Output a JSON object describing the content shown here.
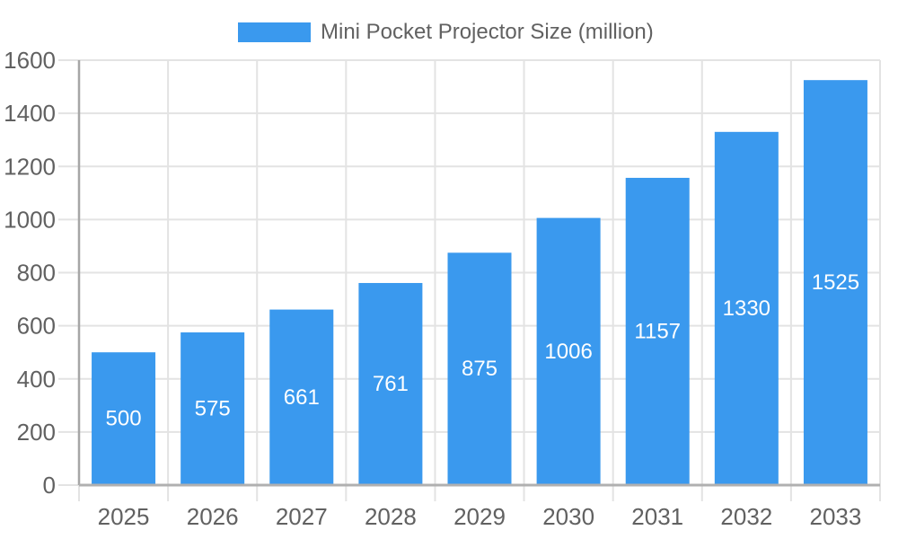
{
  "legend": {
    "swatch_icon": "legend-color-swatch"
  },
  "chart_data": {
    "type": "bar",
    "title": "Mini Pocket Projector Size (million)",
    "categories": [
      "2025",
      "2026",
      "2027",
      "2028",
      "2029",
      "2030",
      "2031",
      "2032",
      "2033"
    ],
    "values": [
      500,
      575,
      661,
      761,
      875,
      1006,
      1157,
      1330,
      1525
    ],
    "value_labels": [
      "500",
      "575",
      "661",
      "761",
      "875",
      "1006",
      "1157",
      "1330",
      "1525"
    ],
    "xlabel": "",
    "ylabel": "",
    "ylim": [
      0,
      1600
    ],
    "y_ticks": [
      0,
      200,
      400,
      600,
      800,
      1000,
      1200,
      1400,
      1600
    ],
    "grid": true,
    "legend_position": "top-center",
    "bar_color": "#3A99EE",
    "value_label_color": "#ffffff",
    "axis_text_color": "#616161",
    "gridline_color": "#E3E3E3",
    "x_axis_line_color": "#B0B0B0",
    "y_axis_line_color": "#A6A6A6",
    "background_color": "#ffffff"
  }
}
